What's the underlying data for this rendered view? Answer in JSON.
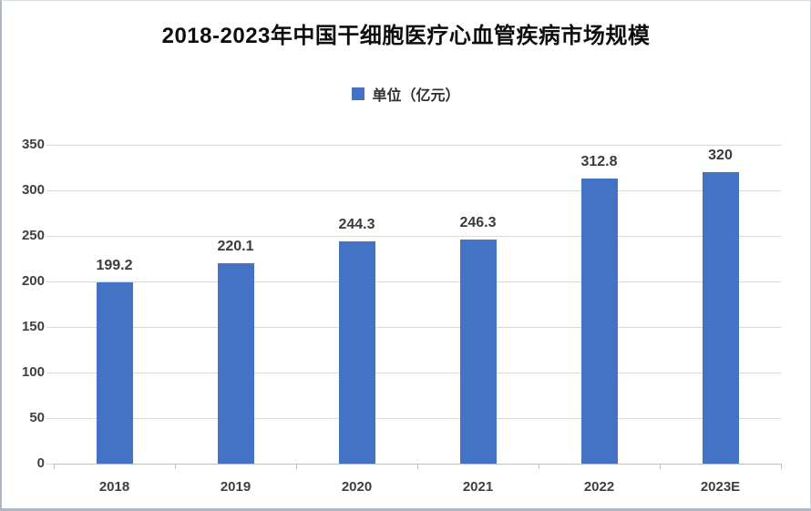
{
  "page": {
    "title": "2018-2023年中国干细胞医疗心血管疾病市场规模"
  },
  "legend": {
    "label": "单位（亿元）"
  },
  "colors": {
    "bar": "#4472c4",
    "gridline": "#d9d9d9",
    "axis_line": "#bfbfbf",
    "title_text": "#0d0d0d",
    "label_text": "#3f3f3f"
  },
  "chart_data": {
    "type": "bar",
    "title": "2018-2023年中国干细胞医疗心血管疾病市场规模",
    "legend_entries": [
      "单位（亿元）"
    ],
    "legend_position": "top",
    "categories": [
      "2018",
      "2019",
      "2020",
      "2021",
      "2022",
      "2023E"
    ],
    "values": [
      199.2,
      220.1,
      244.3,
      246.3,
      312.8,
      320
    ],
    "data_labels": [
      "199.2",
      "220.1",
      "244.3",
      "246.3",
      "312.8",
      "320"
    ],
    "xlabel": "",
    "ylabel": "",
    "ylim": [
      0,
      350
    ],
    "ytick_interval": 50,
    "yticks": [
      0,
      50,
      100,
      150,
      200,
      250,
      300,
      350
    ],
    "grid": true
  }
}
